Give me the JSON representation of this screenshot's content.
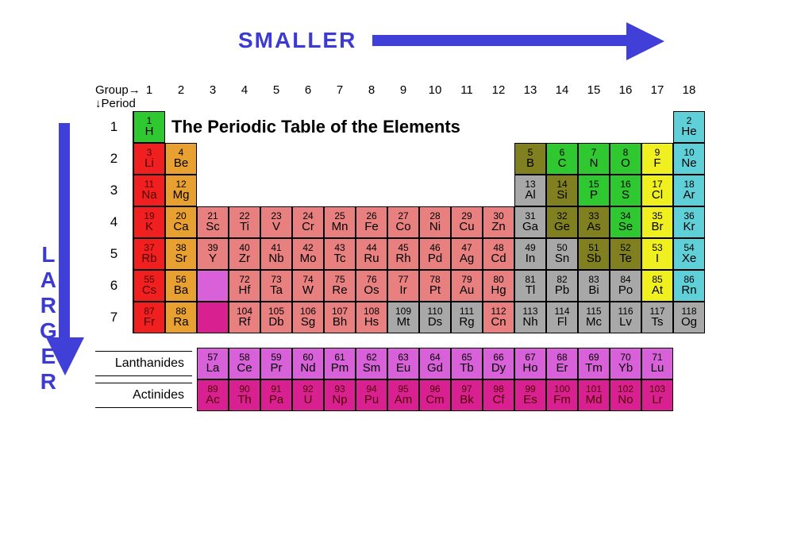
{
  "annotations": {
    "top_label": "SMALLER",
    "left_label": "LARGER",
    "annotation_color": "#3b3bd4",
    "arrow_color": "#4040d8"
  },
  "header": {
    "group_label": "Group→",
    "period_label": "↓Period",
    "title": "The Periodic Table of the Elements",
    "groups": [
      "1",
      "2",
      "3",
      "4",
      "5",
      "6",
      "7",
      "8",
      "9",
      "10",
      "11",
      "12",
      "13",
      "14",
      "15",
      "16",
      "17",
      "18"
    ],
    "periods": [
      "1",
      "2",
      "3",
      "4",
      "5",
      "6",
      "7"
    ]
  },
  "series": {
    "lanthanides_label": "Lanthanides",
    "actinides_label": "Actinides"
  },
  "colors": {
    "alkali": "#f02020",
    "alkaline": "#e8a030",
    "transition": "#e88080",
    "post": "#a8a8a8",
    "metalloid": "#808020",
    "nonmetal": "#30c830",
    "halogen": "#f0f020",
    "noble": "#60d0d8",
    "lanth": "#d860d8",
    "act": "#d82090",
    "blank_lanth": "#d860d8",
    "blank_act": "#d82090",
    "text_dark": "#500000",
    "text_black": "#000000"
  },
  "elements": {
    "r1": [
      {
        "n": "1",
        "s": "H",
        "c": "nonmetal"
      },
      null,
      null,
      null,
      null,
      null,
      null,
      null,
      null,
      null,
      null,
      null,
      null,
      null,
      null,
      null,
      null,
      {
        "n": "2",
        "s": "He",
        "c": "noble"
      }
    ],
    "r2": [
      {
        "n": "3",
        "s": "Li",
        "c": "alkali"
      },
      {
        "n": "4",
        "s": "Be",
        "c": "alkaline"
      },
      null,
      null,
      null,
      null,
      null,
      null,
      null,
      null,
      null,
      null,
      {
        "n": "5",
        "s": "B",
        "c": "metalloid"
      },
      {
        "n": "6",
        "s": "C",
        "c": "nonmetal"
      },
      {
        "n": "7",
        "s": "N",
        "c": "nonmetal"
      },
      {
        "n": "8",
        "s": "O",
        "c": "nonmetal"
      },
      {
        "n": "9",
        "s": "F",
        "c": "halogen"
      },
      {
        "n": "10",
        "s": "Ne",
        "c": "noble"
      }
    ],
    "r3": [
      {
        "n": "11",
        "s": "Na",
        "c": "alkali"
      },
      {
        "n": "12",
        "s": "Mg",
        "c": "alkaline"
      },
      null,
      null,
      null,
      null,
      null,
      null,
      null,
      null,
      null,
      null,
      {
        "n": "13",
        "s": "Al",
        "c": "post"
      },
      {
        "n": "14",
        "s": "Si",
        "c": "metalloid"
      },
      {
        "n": "15",
        "s": "P",
        "c": "nonmetal"
      },
      {
        "n": "16",
        "s": "S",
        "c": "nonmetal"
      },
      {
        "n": "17",
        "s": "Cl",
        "c": "halogen"
      },
      {
        "n": "18",
        "s": "Ar",
        "c": "noble"
      }
    ],
    "r4": [
      {
        "n": "19",
        "s": "K",
        "c": "alkali"
      },
      {
        "n": "20",
        "s": "Ca",
        "c": "alkaline"
      },
      {
        "n": "21",
        "s": "Sc",
        "c": "transition"
      },
      {
        "n": "22",
        "s": "Ti",
        "c": "transition"
      },
      {
        "n": "23",
        "s": "V",
        "c": "transition"
      },
      {
        "n": "24",
        "s": "Cr",
        "c": "transition"
      },
      {
        "n": "25",
        "s": "Mn",
        "c": "transition"
      },
      {
        "n": "26",
        "s": "Fe",
        "c": "transition"
      },
      {
        "n": "27",
        "s": "Co",
        "c": "transition"
      },
      {
        "n": "28",
        "s": "Ni",
        "c": "transition"
      },
      {
        "n": "29",
        "s": "Cu",
        "c": "transition"
      },
      {
        "n": "30",
        "s": "Zn",
        "c": "transition"
      },
      {
        "n": "31",
        "s": "Ga",
        "c": "post"
      },
      {
        "n": "32",
        "s": "Ge",
        "c": "metalloid"
      },
      {
        "n": "33",
        "s": "As",
        "c": "metalloid"
      },
      {
        "n": "34",
        "s": "Se",
        "c": "nonmetal"
      },
      {
        "n": "35",
        "s": "Br",
        "c": "halogen"
      },
      {
        "n": "36",
        "s": "Kr",
        "c": "noble"
      }
    ],
    "r5": [
      {
        "n": "37",
        "s": "Rb",
        "c": "alkali"
      },
      {
        "n": "38",
        "s": "Sr",
        "c": "alkaline"
      },
      {
        "n": "39",
        "s": "Y",
        "c": "transition"
      },
      {
        "n": "40",
        "s": "Zr",
        "c": "transition"
      },
      {
        "n": "41",
        "s": "Nb",
        "c": "transition"
      },
      {
        "n": "42",
        "s": "Mo",
        "c": "transition"
      },
      {
        "n": "43",
        "s": "Tc",
        "c": "transition"
      },
      {
        "n": "44",
        "s": "Ru",
        "c": "transition"
      },
      {
        "n": "45",
        "s": "Rh",
        "c": "transition"
      },
      {
        "n": "46",
        "s": "Pd",
        "c": "transition"
      },
      {
        "n": "47",
        "s": "Ag",
        "c": "transition"
      },
      {
        "n": "48",
        "s": "Cd",
        "c": "transition"
      },
      {
        "n": "49",
        "s": "In",
        "c": "post"
      },
      {
        "n": "50",
        "s": "Sn",
        "c": "post"
      },
      {
        "n": "51",
        "s": "Sb",
        "c": "metalloid"
      },
      {
        "n": "52",
        "s": "Te",
        "c": "metalloid"
      },
      {
        "n": "53",
        "s": "I",
        "c": "halogen"
      },
      {
        "n": "54",
        "s": "Xe",
        "c": "noble"
      }
    ],
    "r6": [
      {
        "n": "55",
        "s": "Cs",
        "c": "alkali"
      },
      {
        "n": "56",
        "s": "Ba",
        "c": "alkaline"
      },
      {
        "n": "",
        "s": "",
        "c": "blank_lanth"
      },
      {
        "n": "72",
        "s": "Hf",
        "c": "transition"
      },
      {
        "n": "73",
        "s": "Ta",
        "c": "transition"
      },
      {
        "n": "74",
        "s": "W",
        "c": "transition"
      },
      {
        "n": "75",
        "s": "Re",
        "c": "transition"
      },
      {
        "n": "76",
        "s": "Os",
        "c": "transition"
      },
      {
        "n": "77",
        "s": "Ir",
        "c": "transition"
      },
      {
        "n": "78",
        "s": "Pt",
        "c": "transition"
      },
      {
        "n": "79",
        "s": "Au",
        "c": "transition"
      },
      {
        "n": "80",
        "s": "Hg",
        "c": "transition"
      },
      {
        "n": "81",
        "s": "Tl",
        "c": "post"
      },
      {
        "n": "82",
        "s": "Pb",
        "c": "post"
      },
      {
        "n": "83",
        "s": "Bi",
        "c": "post"
      },
      {
        "n": "84",
        "s": "Po",
        "c": "post"
      },
      {
        "n": "85",
        "s": "At",
        "c": "halogen"
      },
      {
        "n": "86",
        "s": "Rn",
        "c": "noble"
      }
    ],
    "r7": [
      {
        "n": "87",
        "s": "Fr",
        "c": "alkali"
      },
      {
        "n": "88",
        "s": "Ra",
        "c": "alkaline"
      },
      {
        "n": "",
        "s": "",
        "c": "blank_act"
      },
      {
        "n": "104",
        "s": "Rf",
        "c": "transition"
      },
      {
        "n": "105",
        "s": "Db",
        "c": "transition"
      },
      {
        "n": "106",
        "s": "Sg",
        "c": "transition"
      },
      {
        "n": "107",
        "s": "Bh",
        "c": "transition"
      },
      {
        "n": "108",
        "s": "Hs",
        "c": "transition"
      },
      {
        "n": "109",
        "s": "Mt",
        "c": "post"
      },
      {
        "n": "110",
        "s": "Ds",
        "c": "post"
      },
      {
        "n": "111",
        "s": "Rg",
        "c": "post"
      },
      {
        "n": "112",
        "s": "Cn",
        "c": "transition"
      },
      {
        "n": "113",
        "s": "Nh",
        "c": "post"
      },
      {
        "n": "114",
        "s": "Fl",
        "c": "post"
      },
      {
        "n": "115",
        "s": "Mc",
        "c": "post"
      },
      {
        "n": "116",
        "s": "Lv",
        "c": "post"
      },
      {
        "n": "117",
        "s": "Ts",
        "c": "post"
      },
      {
        "n": "118",
        "s": "Og",
        "c": "post"
      }
    ],
    "lanth": [
      {
        "n": "57",
        "s": "La",
        "c": "lanth"
      },
      {
        "n": "58",
        "s": "Ce",
        "c": "lanth"
      },
      {
        "n": "59",
        "s": "Pr",
        "c": "lanth"
      },
      {
        "n": "60",
        "s": "Nd",
        "c": "lanth"
      },
      {
        "n": "61",
        "s": "Pm",
        "c": "lanth"
      },
      {
        "n": "62",
        "s": "Sm",
        "c": "lanth"
      },
      {
        "n": "63",
        "s": "Eu",
        "c": "lanth"
      },
      {
        "n": "64",
        "s": "Gd",
        "c": "lanth"
      },
      {
        "n": "65",
        "s": "Tb",
        "c": "lanth"
      },
      {
        "n": "66",
        "s": "Dy",
        "c": "lanth"
      },
      {
        "n": "67",
        "s": "Ho",
        "c": "lanth"
      },
      {
        "n": "68",
        "s": "Er",
        "c": "lanth"
      },
      {
        "n": "69",
        "s": "Tm",
        "c": "lanth"
      },
      {
        "n": "70",
        "s": "Yb",
        "c": "lanth"
      },
      {
        "n": "71",
        "s": "Lu",
        "c": "lanth"
      }
    ],
    "act": [
      {
        "n": "89",
        "s": "Ac",
        "c": "act"
      },
      {
        "n": "90",
        "s": "Th",
        "c": "act"
      },
      {
        "n": "91",
        "s": "Pa",
        "c": "act"
      },
      {
        "n": "92",
        "s": "U",
        "c": "act"
      },
      {
        "n": "93",
        "s": "Np",
        "c": "act"
      },
      {
        "n": "94",
        "s": "Pu",
        "c": "act"
      },
      {
        "n": "95",
        "s": "Am",
        "c": "act"
      },
      {
        "n": "96",
        "s": "Cm",
        "c": "act"
      },
      {
        "n": "97",
        "s": "Bk",
        "c": "act"
      },
      {
        "n": "98",
        "s": "Cf",
        "c": "act"
      },
      {
        "n": "99",
        "s": "Es",
        "c": "act"
      },
      {
        "n": "100",
        "s": "Fm",
        "c": "act"
      },
      {
        "n": "101",
        "s": "Md",
        "c": "act"
      },
      {
        "n": "102",
        "s": "No",
        "c": "act"
      },
      {
        "n": "103",
        "s": "Lr",
        "c": "act"
      }
    ]
  }
}
